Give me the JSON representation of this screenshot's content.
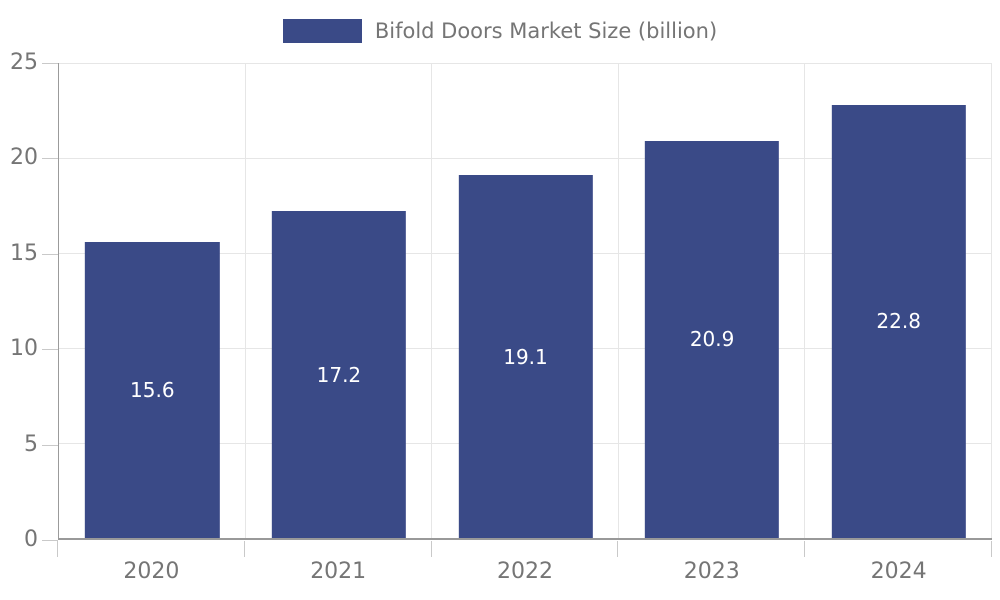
{
  "legend": {
    "label": "Bifold Doors Market Size (billion)",
    "swatch_color": "#3a4a87"
  },
  "chart_data": {
    "type": "bar",
    "title": "Bifold Doors Market Size (billion)",
    "categories": [
      "2020",
      "2021",
      "2022",
      "2023",
      "2024"
    ],
    "values": [
      15.6,
      17.2,
      19.1,
      20.9,
      22.8
    ],
    "value_labels": [
      "15.6",
      "17.2",
      "19.1",
      "20.9",
      "22.8"
    ],
    "xlabel": "",
    "ylabel": "",
    "ylim": [
      0,
      25
    ],
    "yticks": [
      0,
      5,
      10,
      15,
      20,
      25
    ],
    "grid": true,
    "legend_position": "top-center",
    "bar_width_fraction": 0.72,
    "colors": {
      "bar": "#3a4a87",
      "value_label": "#ffffff",
      "axis_line": "#999999",
      "gridline": "#e6e6e6",
      "tick_mark": "#c9c9c9",
      "tick_label": "#757575",
      "legend_text": "#757575",
      "background": "#ffffff"
    }
  }
}
